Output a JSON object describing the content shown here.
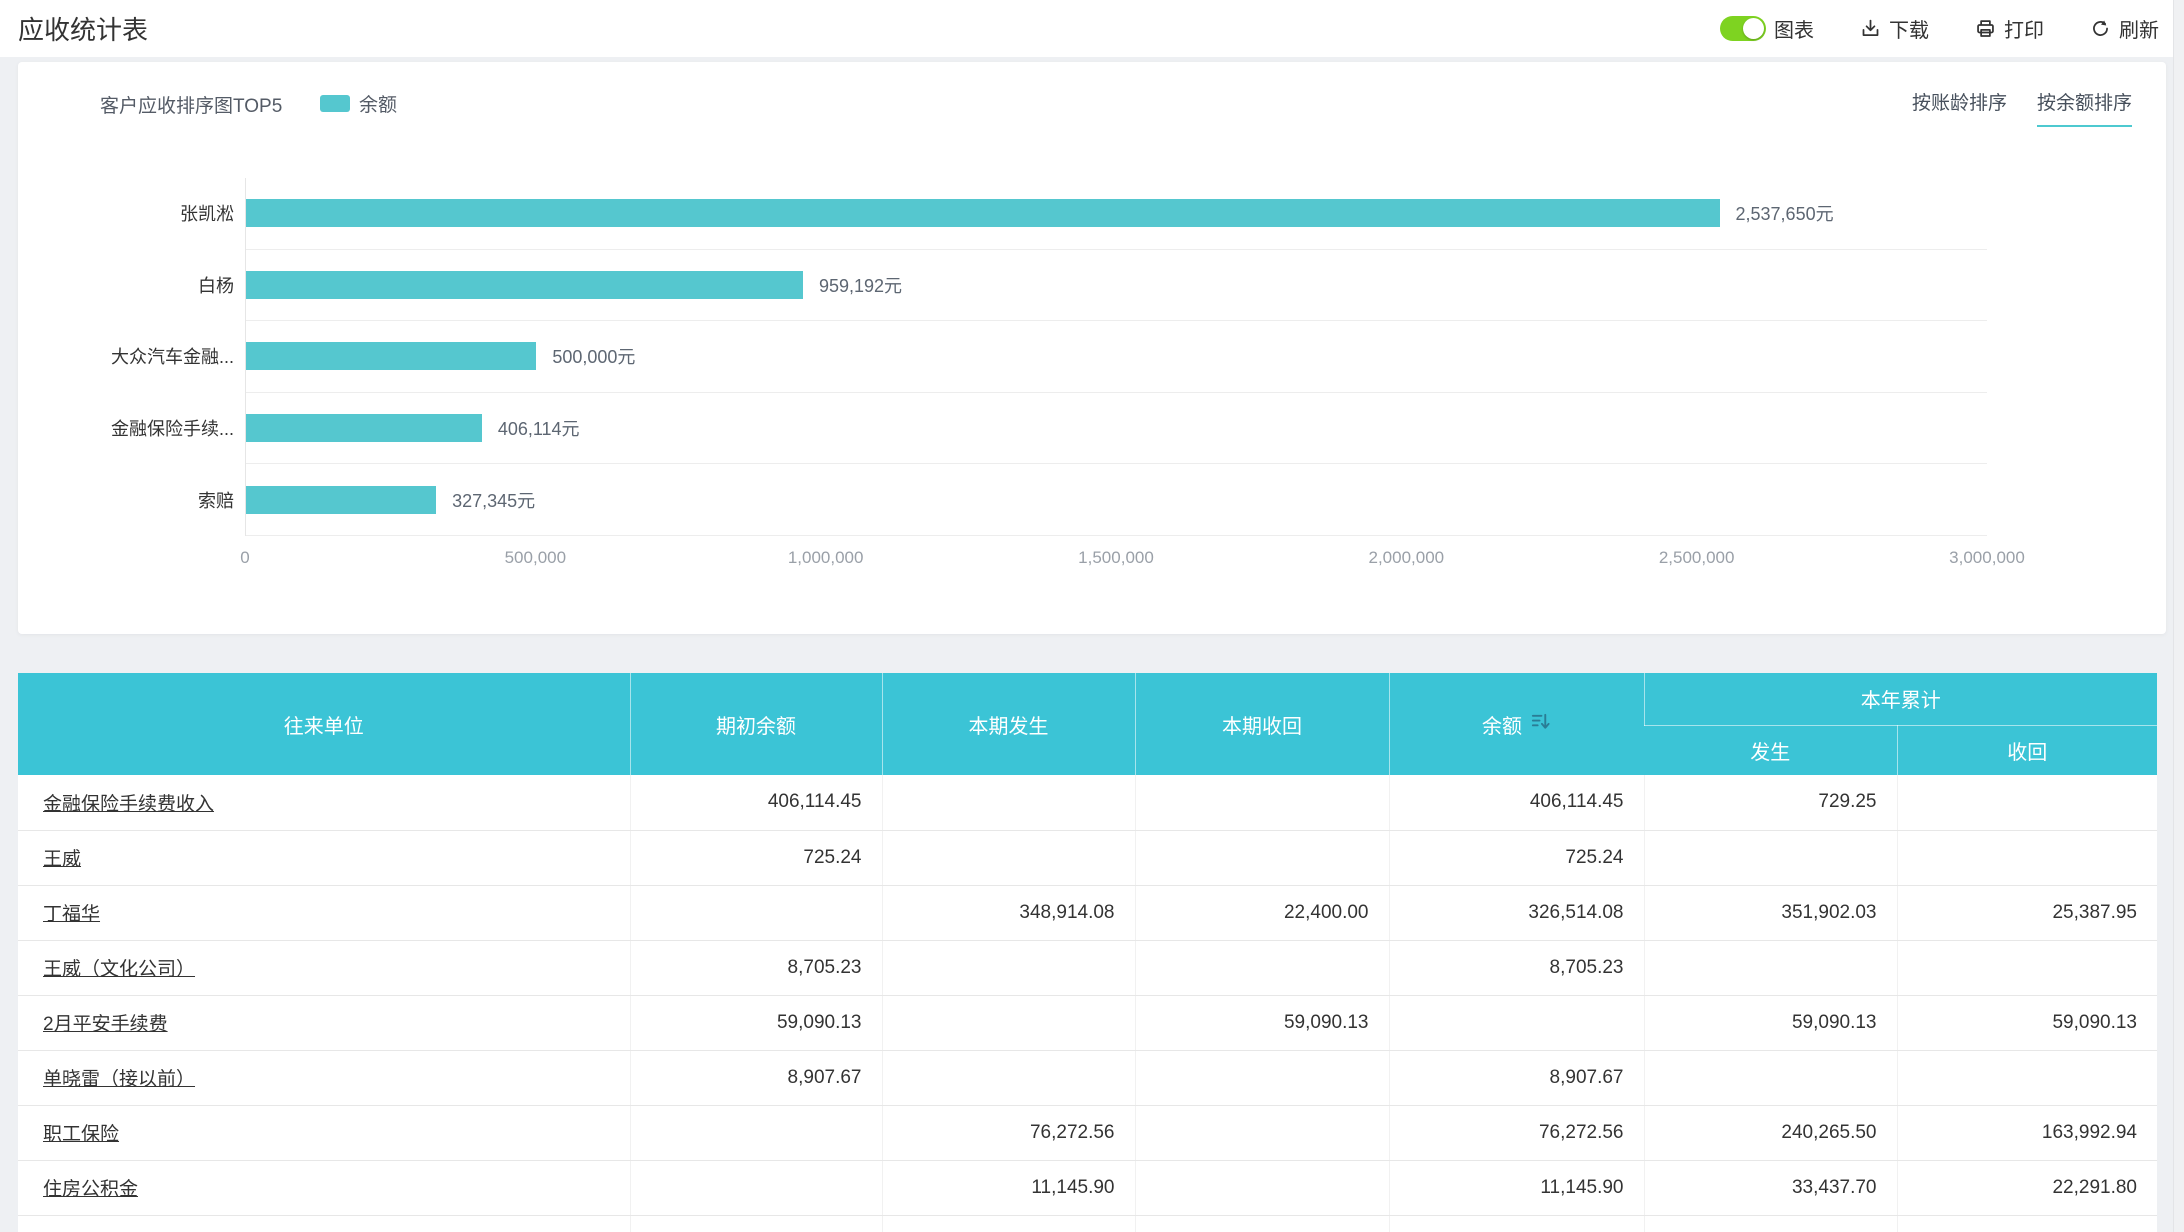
{
  "page": {
    "title": "应收统计表",
    "background": "#eef0f3"
  },
  "toolbar": {
    "chart_toggle": {
      "label": "图表",
      "on": true,
      "color": "#7ed321"
    },
    "download": "下载",
    "print": "打印",
    "refresh": "刷新"
  },
  "chart": {
    "title": "客户应收排序图TOP5",
    "legend": "余额",
    "bar_color": "#55c7cf",
    "active_tab_underline": "#4ec9d0",
    "sort_tabs": [
      {
        "label": "按账龄排序",
        "active": false
      },
      {
        "label": "按余额排序",
        "active": true
      }
    ]
  },
  "chart_data": {
    "type": "bar",
    "orientation": "horizontal",
    "title": "客户应收排序图TOP5",
    "series_name": "余额",
    "categories": [
      "张凯淞",
      "白杨",
      "大众汽车金融...",
      "金融保险手续...",
      "索赔"
    ],
    "values": [
      2537650,
      959192,
      500000,
      406114,
      327345
    ],
    "value_labels": [
      "2,537,650元",
      "959,192元",
      "500,000元",
      "406,114元",
      "327,345元"
    ],
    "xlim": [
      0,
      3000000
    ],
    "x_ticks": [
      {
        "value": 0,
        "label": "0"
      },
      {
        "value": 500000,
        "label": "500,000"
      },
      {
        "value": 1000000,
        "label": "1,000,000"
      },
      {
        "value": 1500000,
        "label": "1,500,000"
      },
      {
        "value": 2000000,
        "label": "2,000,000"
      },
      {
        "value": 2500000,
        "label": "2,500,000"
      },
      {
        "value": 3000000,
        "label": "3,000,000"
      }
    ],
    "grid": false,
    "legend_position": "top-left"
  },
  "table": {
    "header_bg": "#3bc4d6",
    "header": {
      "unit": "往来单位",
      "opening_balance": "期初余额",
      "current_incurred": "本期发生",
      "current_received": "本期收回",
      "balance": "余额",
      "ytd": "本年累计",
      "ytd_incurred": "发生",
      "ytd_received": "收回"
    },
    "rows": [
      {
        "unit": "金融保险手续费收入",
        "opening_balance": "406,114.45",
        "current_incurred": "",
        "current_received": "",
        "balance": "406,114.45",
        "ytd_incurred": "729.25",
        "ytd_received": ""
      },
      {
        "unit": "王威",
        "opening_balance": "725.24",
        "current_incurred": "",
        "current_received": "",
        "balance": "725.24",
        "ytd_incurred": "",
        "ytd_received": ""
      },
      {
        "unit": "丁福华",
        "opening_balance": "",
        "current_incurred": "348,914.08",
        "current_received": "22,400.00",
        "balance": "326,514.08",
        "ytd_incurred": "351,902.03",
        "ytd_received": "25,387.95"
      },
      {
        "unit": "王威（文化公司）",
        "opening_balance": "8,705.23",
        "current_incurred": "",
        "current_received": "",
        "balance": "8,705.23",
        "ytd_incurred": "",
        "ytd_received": ""
      },
      {
        "unit": "2月平安手续费",
        "opening_balance": "59,090.13",
        "current_incurred": "",
        "current_received": "59,090.13",
        "balance": "",
        "ytd_incurred": "59,090.13",
        "ytd_received": "59,090.13"
      },
      {
        "unit": "单晓雷（接以前）",
        "opening_balance": "8,907.67",
        "current_incurred": "",
        "current_received": "",
        "balance": "8,907.67",
        "ytd_incurred": "",
        "ytd_received": ""
      },
      {
        "unit": "职工保险",
        "opening_balance": "",
        "current_incurred": "76,272.56",
        "current_received": "",
        "balance": "76,272.56",
        "ytd_incurred": "240,265.50",
        "ytd_received": "163,992.94"
      },
      {
        "unit": "住房公积金",
        "opening_balance": "",
        "current_incurred": "11,145.90",
        "current_received": "",
        "balance": "11,145.90",
        "ytd_incurred": "33,437.70",
        "ytd_received": "22,291.80"
      },
      {
        "unit": "",
        "opening_balance": "",
        "current_incurred": "",
        "current_received": "",
        "balance": "",
        "ytd_incurred": "",
        "ytd_received": ""
      }
    ]
  }
}
